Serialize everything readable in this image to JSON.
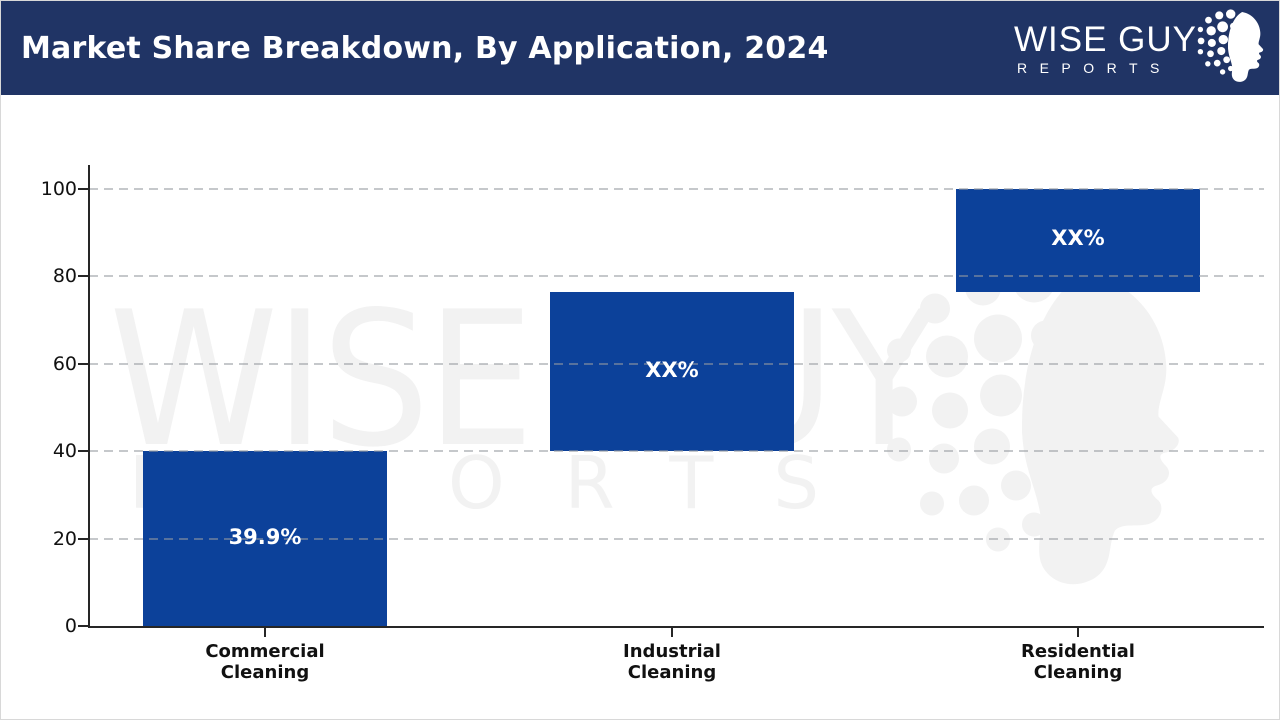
{
  "header": {
    "title": "Market Share Breakdown, By Application, 2024",
    "logo": {
      "name": "WISE GUY",
      "tagline": "REPORTS"
    }
  },
  "watermark": {
    "big_text": "WISE GUY",
    "tagline": "REPORTS"
  },
  "chart_data": {
    "type": "bar",
    "variant": "waterfall",
    "title": "Market Share Breakdown, By Application, 2024",
    "categories": [
      {
        "line1": "Commercial",
        "line2": "Cleaning"
      },
      {
        "line1": "Industrial",
        "line2": "Cleaning"
      },
      {
        "line1": "Residential",
        "line2": "Cleaning"
      }
    ],
    "bars": [
      {
        "category": "Commercial Cleaning",
        "label": "39.9%",
        "start": 0,
        "end": 39.9
      },
      {
        "category": "Industrial Cleaning",
        "label": "XX%",
        "start": 39.9,
        "end": 76.4
      },
      {
        "category": "Residential Cleaning",
        "label": "XX%",
        "start": 76.4,
        "end": 100
      }
    ],
    "yticks": [
      0,
      20,
      40,
      60,
      80,
      100
    ],
    "ylim": [
      0,
      105
    ],
    "xlabel": "",
    "ylabel": "",
    "grid": true,
    "legend": false,
    "colors": {
      "bar": "#0c419a",
      "bar_label_text": "#ffffff",
      "axis": "#262626",
      "grid": "#c9cdd1",
      "header_bg": "#203465",
      "watermark": "#f2f2f2"
    }
  }
}
